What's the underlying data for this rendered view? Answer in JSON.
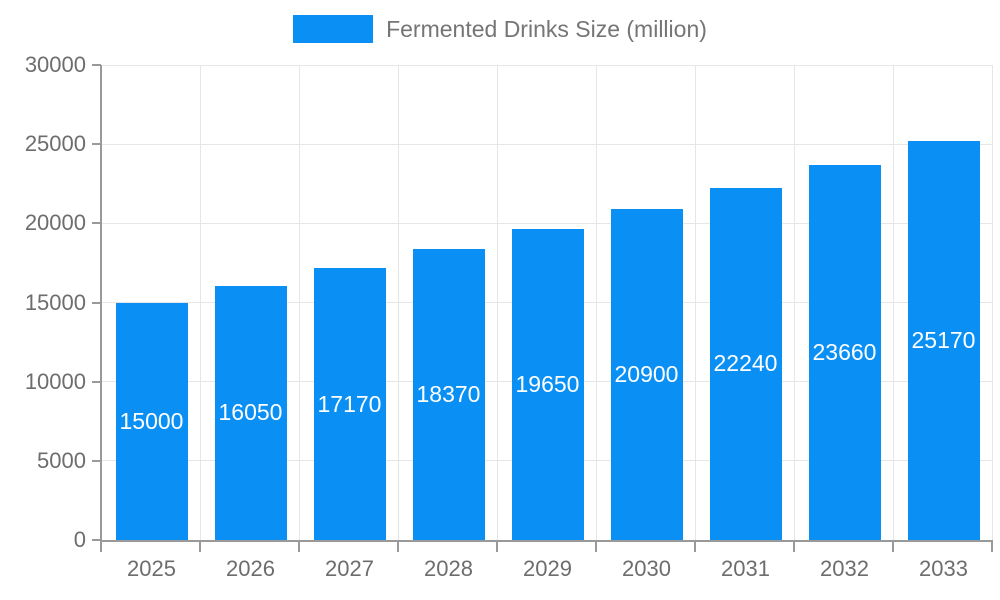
{
  "legend": {
    "items": [
      {
        "label": "Fermented Drinks Size (million)",
        "color": "#0a90f5"
      }
    ],
    "position": "top"
  },
  "chart_data": {
    "type": "bar",
    "title": "",
    "categories": [
      "2025",
      "2026",
      "2027",
      "2028",
      "2029",
      "2030",
      "2031",
      "2032",
      "2033"
    ],
    "series": [
      {
        "name": "Fermented Drinks Size (million)",
        "values": [
          15000,
          16050,
          17170,
          18370,
          19650,
          20900,
          22240,
          23660,
          25170
        ],
        "color": "#0a90f5"
      }
    ],
    "xlabel": "",
    "ylabel": "",
    "ylim": [
      0,
      30000
    ],
    "yticks": [
      0,
      5000,
      10000,
      15000,
      20000,
      25000,
      30000
    ],
    "grid": true,
    "legend_position": "top",
    "data_labels": {
      "show": true,
      "color": "#ffffff",
      "position": "center-of-bar"
    }
  },
  "style": {
    "bar_color": "#0a90f5",
    "grid_color": "#e6e6e6",
    "axis_color": "#999999",
    "tick_label_color": "#6d6d6d",
    "legend_text_color": "#757575",
    "background": "#ffffff"
  }
}
